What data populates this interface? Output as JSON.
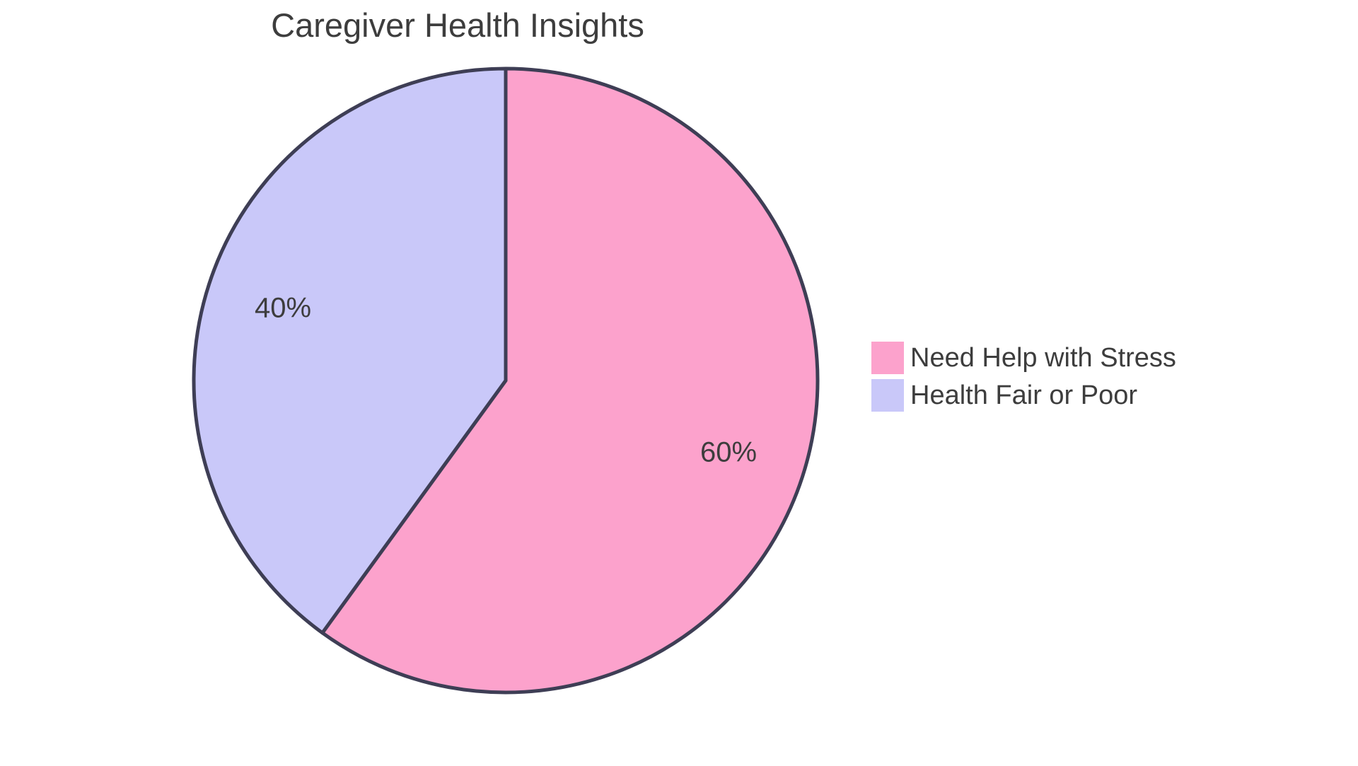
{
  "chart_data": {
    "type": "pie",
    "title": "Caregiver Health Insights",
    "slices": [
      {
        "label": "Need Help with Stress",
        "value": 60,
        "pct_label": "60%",
        "color": "#FCA2CC"
      },
      {
        "label": "Health Fair or Poor",
        "value": 40,
        "pct_label": "40%",
        "color": "#C9C8F9"
      }
    ],
    "start_angle_deg": 0,
    "direction": "clockwise",
    "legend_position": "right",
    "labels_inside": true,
    "stroke_color": "#3E3E55",
    "stroke_width": 5,
    "text_color": "#3D3D3D",
    "background": "#FFFFFF"
  }
}
